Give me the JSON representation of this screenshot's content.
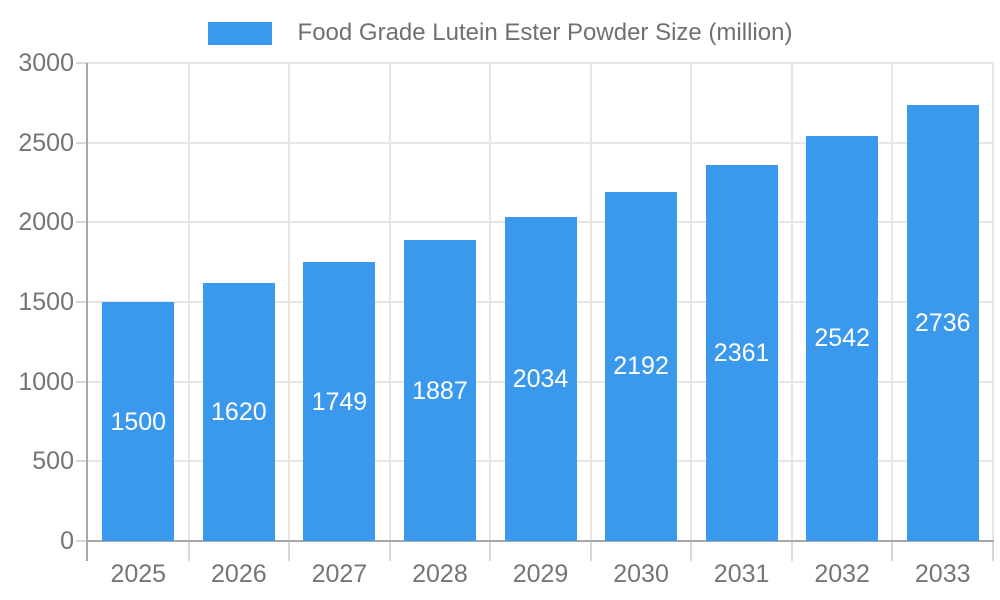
{
  "legend": {
    "label": "Food Grade Lutein Ester Powder Size (million)"
  },
  "chart_data": {
    "type": "bar",
    "title": "Food Grade Lutein Ester Powder Size (million)",
    "series_name": "Food Grade Lutein Ester Powder Size (million)",
    "categories": [
      "2025",
      "2026",
      "2027",
      "2028",
      "2029",
      "2030",
      "2031",
      "2032",
      "2033"
    ],
    "values": [
      1500,
      1620,
      1749,
      1887,
      2034,
      2192,
      2361,
      2542,
      2736
    ],
    "data_labels_visible": true,
    "data_label_position": "inside-center",
    "xlabel": "",
    "ylabel": "",
    "ylim": [
      0,
      3000
    ],
    "y_ticks": [
      0,
      500,
      1000,
      1500,
      2000,
      2500,
      3000
    ],
    "grid": true,
    "legend_position": "top-center",
    "colors": {
      "bar": "#3A99EC",
      "bar_value_text": "#FFFFFF",
      "axis_line": "#A8A8A8",
      "gridline": "#E6E6E6",
      "tick": "#D8D8D8",
      "axis_text": "#757575",
      "legend_text": "#707070",
      "background": "#FFFFFF"
    }
  }
}
